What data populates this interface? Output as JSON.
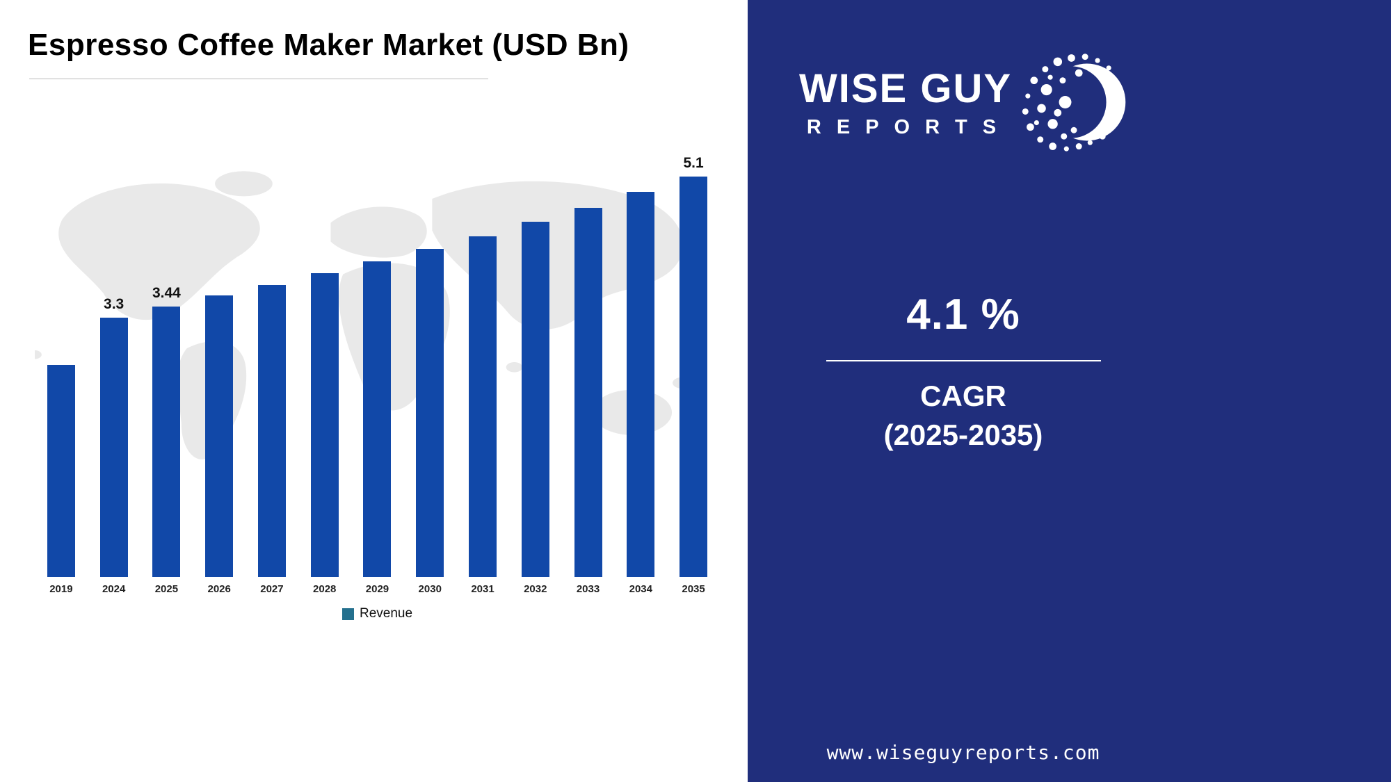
{
  "header": {
    "title": "Espresso Coffee Maker Market (USD Bn)"
  },
  "chart_data": {
    "type": "bar",
    "title": "Espresso Coffee Maker Market (USD Bn)",
    "categories": [
      "2019",
      "2024",
      "2025",
      "2026",
      "2027",
      "2028",
      "2029",
      "2030",
      "2031",
      "2032",
      "2033",
      "2034",
      "2035"
    ],
    "values": [
      2.7,
      3.3,
      3.44,
      3.58,
      3.72,
      3.87,
      4.02,
      4.18,
      4.34,
      4.52,
      4.7,
      4.9,
      5.1
    ],
    "bar_labels": [
      "",
      "3.3",
      "3.44",
      "",
      "",
      "",
      "",
      "",
      "",
      "",
      "",
      "",
      "5.1"
    ],
    "xlabel": "",
    "ylabel": "",
    "ylim": [
      0,
      5.5
    ],
    "grid": false,
    "bar_color": "#1148a8",
    "legend": {
      "label": "Revenue",
      "color": "#24708e",
      "position": "bottom-center"
    },
    "background": "light-gray world map silhouette"
  },
  "panel": {
    "background_color": "#202e7c",
    "brand": {
      "line1": "WISE GUY",
      "line2": "REPORTS"
    },
    "cagr_value": "4.1 %",
    "cagr_label_1": "CAGR",
    "cagr_label_2": "(2025-2035)",
    "website": "www.wiseguyreports.com"
  }
}
